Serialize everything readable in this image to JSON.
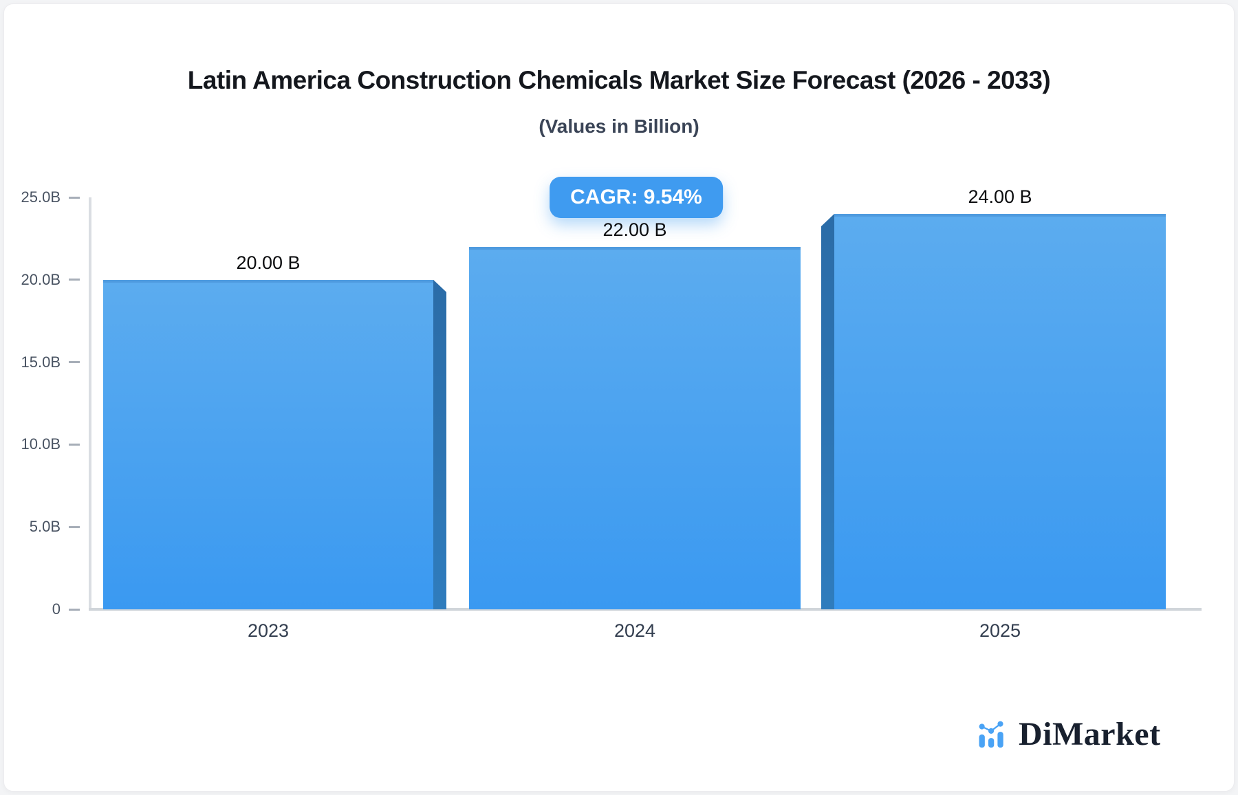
{
  "header": {
    "title": "Latin America Construction Chemicals Market Size Forecast (2026 - 2033)",
    "subtitle": "(Values in Billion)"
  },
  "cagr": {
    "label": "CAGR: 9.54%"
  },
  "chart_data": {
    "type": "bar",
    "title": "Latin America Construction Chemicals Market Size Forecast (2026 - 2033)",
    "subtitle": "(Values in Billion)",
    "annotation": "CAGR: 9.54%",
    "categories": [
      "2023",
      "2024",
      "2025"
    ],
    "values": [
      20,
      22,
      24
    ],
    "value_labels": [
      "20.00 B",
      "22.00 B",
      "24.00 B"
    ],
    "xlabel": "",
    "ylabel": "",
    "ylim": [
      0,
      25
    ],
    "y_tick_labels": [
      "25.0B",
      "20.0B",
      "15.0B",
      "10.0B",
      "5.0B",
      "0"
    ],
    "y_tick_values": [
      25,
      20,
      15,
      10,
      5,
      0
    ],
    "grid": "off",
    "legend": "none",
    "colors": {
      "bar_face_top": "#5cacef",
      "bar_face_bottom": "#3a99f1",
      "bar_side_top": "#2b6ca7",
      "bar_side_bottom": "#2f7cbd",
      "badge_background": "#3f9bf0",
      "badge_text": "#ffffff",
      "axis_line": "#dadde2",
      "tick_text": "#495362",
      "brand_blue": "#4aa3f5"
    }
  },
  "footer": {
    "brand": "DiMarket",
    "logo_icon": "mini-bar-chart-icon"
  }
}
